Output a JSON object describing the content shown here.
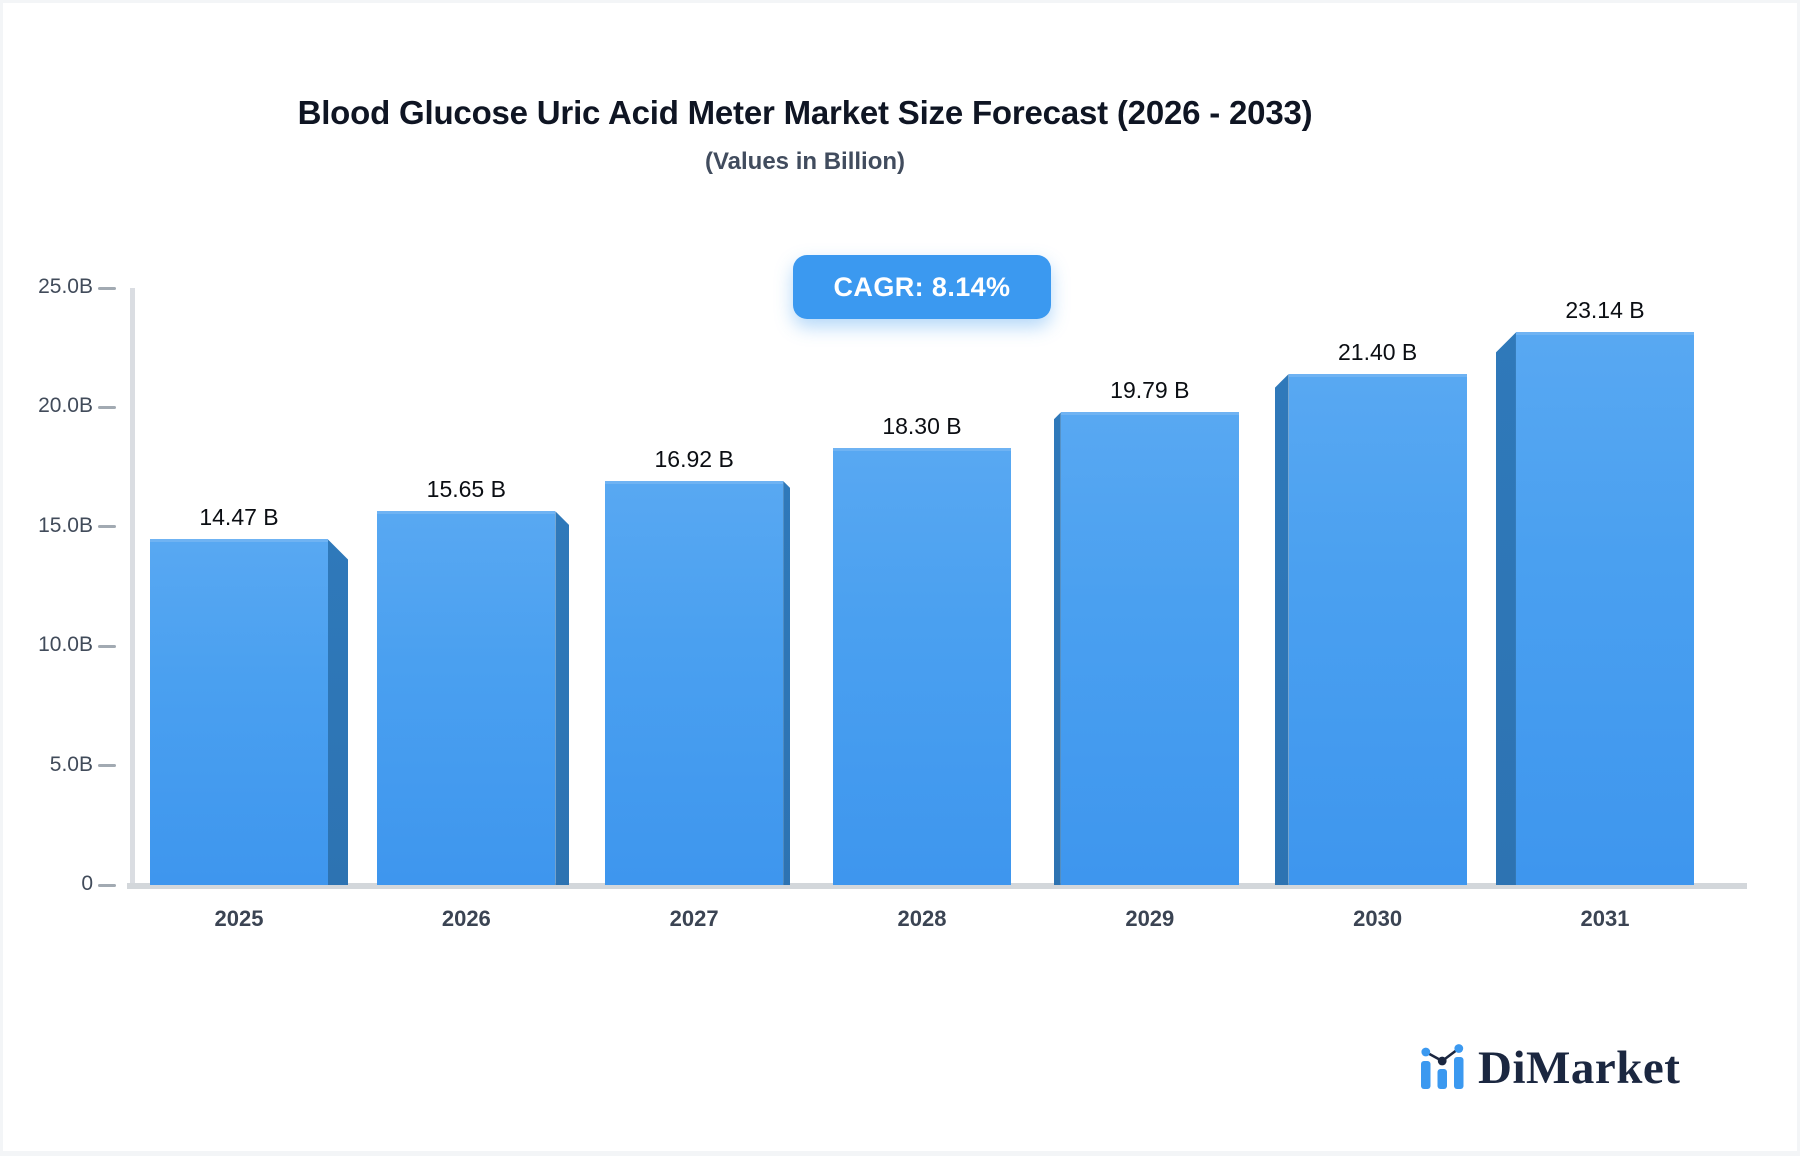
{
  "header": {
    "title": "Blood Glucose Uric Acid Meter Market Size Forecast (2026 - 2033)",
    "subtitle": "(Values in Billion)",
    "cagr_badge": "CAGR: 8.14%"
  },
  "chart_data": {
    "type": "bar",
    "title": "Blood Glucose Uric Acid Meter Market Size Forecast (2026 - 2033)",
    "subtitle": "(Values in Billion)",
    "categories": [
      "2025",
      "2026",
      "2027",
      "2028",
      "2029",
      "2030",
      "2031"
    ],
    "values": [
      14.47,
      15.65,
      16.92,
      18.3,
      19.79,
      21.4,
      23.14
    ],
    "bar_labels": [
      "14.47 B",
      "15.65 B",
      "16.92 B",
      "18.30 B",
      "19.79 B",
      "21.40 B",
      "23.14 B"
    ],
    "cagr_percent": 8.14,
    "xlabel": "",
    "ylabel": "",
    "ylim": [
      0,
      25
    ],
    "grid": false,
    "legend": "none",
    "yticks": [
      {
        "value": 25,
        "label": "25.0B"
      },
      {
        "value": 20,
        "label": "20.0B"
      },
      {
        "value": 15,
        "label": "15.0B"
      },
      {
        "value": 10,
        "label": "10.0B"
      },
      {
        "value": 5,
        "label": "5.0B"
      },
      {
        "value": 0,
        "label": "0"
      }
    ],
    "colors": {
      "bar_fill": "#459df0",
      "bar_side_3d": "#2d74b5",
      "badge_background": "#3b99f0",
      "badge_text": "#ffffff",
      "axis_line": "#dadde2",
      "tick_text": "#414b5a",
      "value_label_text": "#0b0e13"
    }
  },
  "branding": {
    "wordmark": "DiMarket",
    "logo_icon": "mini-bar-line-chart-icon",
    "wordmark_color": "#1b2740",
    "icon_accent": "#3b99f0"
  }
}
